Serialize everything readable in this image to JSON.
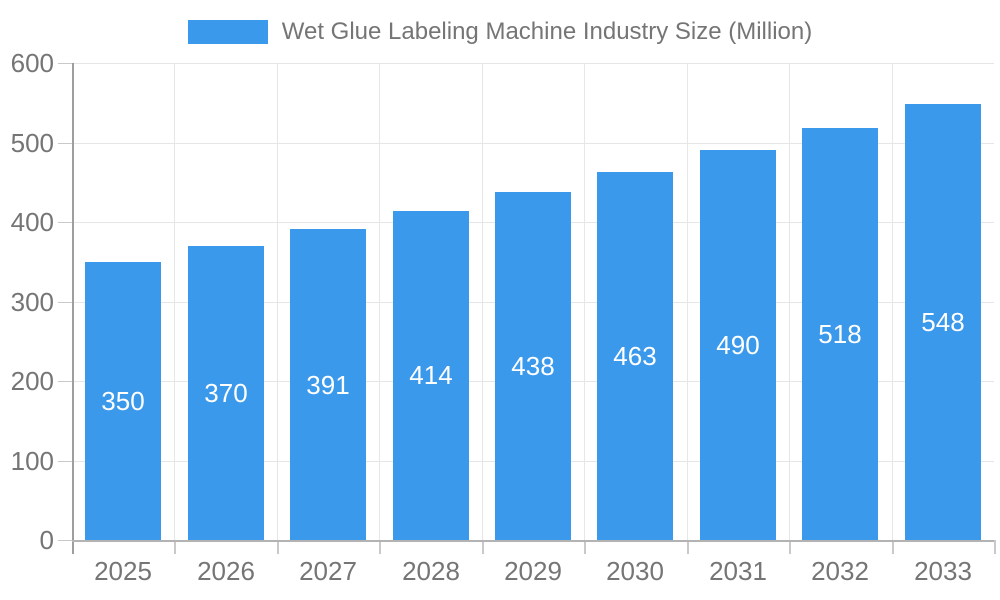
{
  "chart_data": {
    "type": "bar",
    "title": "Wet Glue Labeling Machine Industry Size (Million)",
    "categories": [
      "2025",
      "2026",
      "2027",
      "2028",
      "2029",
      "2030",
      "2031",
      "2032",
      "2033"
    ],
    "values": [
      350,
      370,
      391,
      414,
      438,
      463,
      490,
      518,
      548
    ],
    "xlabel": "",
    "ylabel": "",
    "ylim": [
      0,
      600
    ],
    "yticks": [
      0,
      100,
      200,
      300,
      400,
      500,
      600
    ],
    "grid": true,
    "legend_position": "top",
    "value_label_position": "center-of-bar",
    "colors": {
      "bar": "#3B99EC",
      "bar_value_label": "#FFFFFF",
      "axis_text": "#757575",
      "legend_text": "#757575",
      "gridline": "#E6E6E6",
      "axis_line_y": "#9E9E9E",
      "axis_line_x": "#B3B3B3",
      "tick": "#C9C9C9",
      "background": "#FFFFFF"
    }
  }
}
